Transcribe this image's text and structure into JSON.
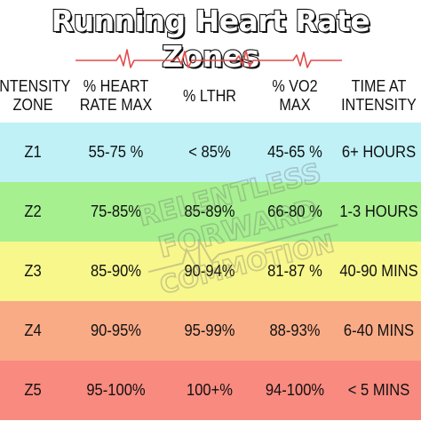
{
  "title": "Running Heart Rate Zones",
  "headers": {
    "zone": [
      "INTENSITY",
      "ZONE"
    ],
    "hrmax": [
      "% HEART",
      "RATE MAX"
    ],
    "lthr": [
      "% LTHR"
    ],
    "vo2": [
      "% VO2",
      "MAX"
    ],
    "time": [
      "TIME AT",
      "INTENSITY"
    ]
  },
  "rows": [
    {
      "zone": "Z1",
      "hrmax": "55-75 %",
      "lthr": "< 85%",
      "vo2": "45-65 %",
      "time": "6+ HOURS",
      "color": "#bff1f7"
    },
    {
      "zone": "Z2",
      "hrmax": "75-85%",
      "lthr": "85-89%",
      "vo2": "66-80 %",
      "time": "1-3 HOURS",
      "color": "#a6f08f"
    },
    {
      "zone": "Z3",
      "hrmax": "85-90%",
      "lthr": "90-94%",
      "vo2": "81-87 %",
      "time": "40-90 MINS",
      "color": "#f8f78c"
    },
    {
      "zone": "Z4",
      "hrmax": "90-95%",
      "lthr": "95-99%",
      "vo2": "88-93%",
      "time": "6-40 MINS",
      "color": "#f9ab86"
    },
    {
      "zone": "Z5",
      "hrmax": "95-100%",
      "lthr": "100+%",
      "vo2": "94-100%",
      "time": "< 5  MINS",
      "color": "#f98a7f"
    }
  ],
  "watermark": [
    "RELENTLESS",
    "FORWARD",
    "COMMOTION"
  ],
  "colors": {
    "pulse": "#e24b4b",
    "text": "#111111"
  }
}
